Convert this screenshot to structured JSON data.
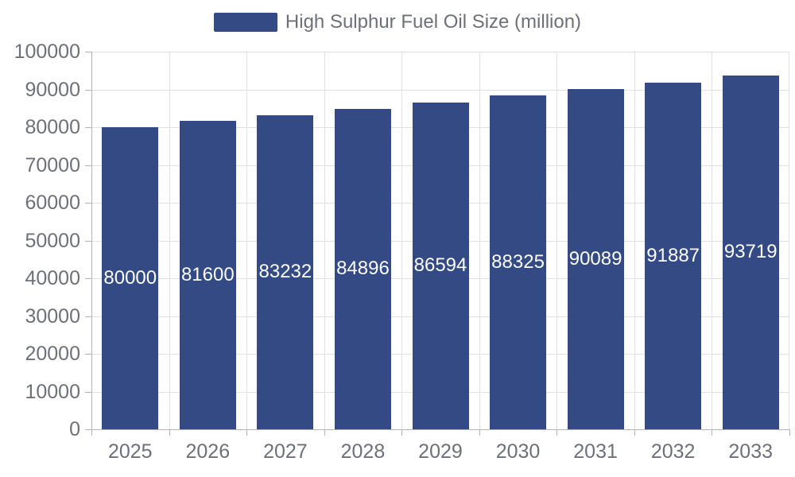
{
  "legend": {
    "label": "High Sulphur Fuel Oil Size (million)"
  },
  "colors": {
    "bar": "#344A85",
    "grid": "#E0E0E0",
    "axis": "#B0B3B8",
    "text": "#6E7079",
    "value_label": "#FFFFFF",
    "background": "#FFFFFF"
  },
  "chart_data": {
    "type": "bar",
    "title": "High Sulphur Fuel Oil Size (million)",
    "categories": [
      "2025",
      "2026",
      "2027",
      "2028",
      "2029",
      "2030",
      "2031",
      "2032",
      "2033"
    ],
    "values": [
      80000,
      81600,
      83232,
      84896,
      86594,
      88325,
      90089,
      91887,
      93719
    ],
    "xlabel": "",
    "ylabel": "",
    "ylim": [
      0,
      100000
    ],
    "ytick_step": 10000,
    "ytick_labels": [
      "0",
      "10000",
      "20000",
      "30000",
      "40000",
      "50000",
      "60000",
      "70000",
      "80000",
      "90000",
      "100000"
    ],
    "grid": true,
    "legend_position": "top-center",
    "value_labels": "inside-center",
    "bar_color": "#344A85"
  }
}
